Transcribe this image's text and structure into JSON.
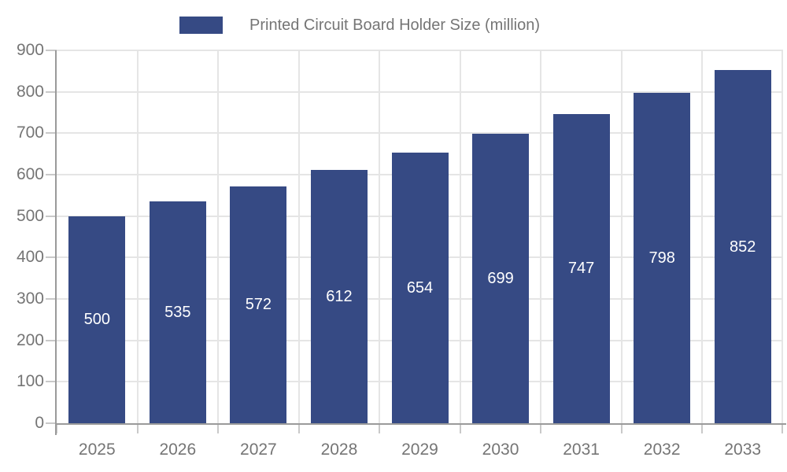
{
  "chart_data": {
    "type": "bar",
    "title": "Printed Circuit Board Holder Size (million)",
    "legend": {
      "label": "Printed Circuit Board Holder Size (million)",
      "position": "top"
    },
    "categories": [
      "2025",
      "2026",
      "2027",
      "2028",
      "2029",
      "2030",
      "2031",
      "2032",
      "2033"
    ],
    "series": [
      {
        "name": "Printed Circuit Board Holder Size (million)",
        "values": [
          500,
          535,
          572,
          612,
          654,
          699,
          747,
          798,
          852
        ]
      }
    ],
    "xlabel": "",
    "ylabel": "",
    "ylim": [
      0,
      900
    ],
    "yticks": [
      0,
      100,
      200,
      300,
      400,
      500,
      600,
      700,
      800,
      900
    ],
    "grid": true,
    "colors": {
      "bar": "#364A84",
      "gridline": "#e5e5e5",
      "tick": "#c9c9c9",
      "axis": "#9a9a9a",
      "axis_label": "#757575",
      "value_label": "#ffffff",
      "background": "#ffffff"
    }
  }
}
